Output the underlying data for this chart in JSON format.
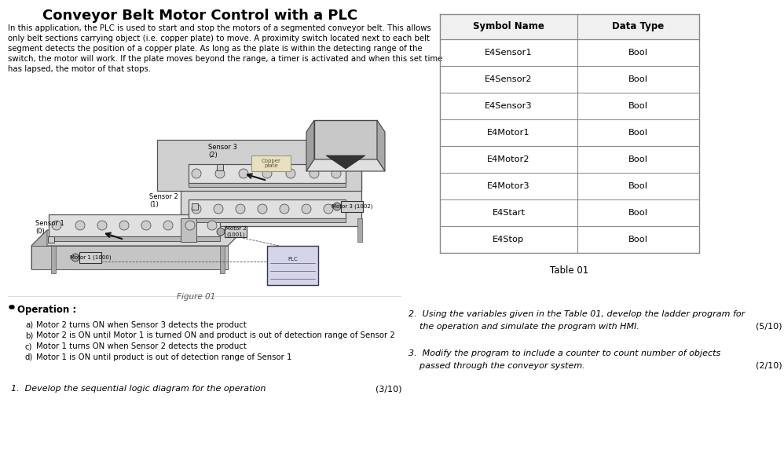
{
  "title": "Conveyor Belt Motor Control with a PLC",
  "intro_text_lines": [
    "In this application, the PLC is used to start and stop the motors of a segmented conveyor belt. This allows",
    "only belt sections carrying object (i.e. copper plate) to move. A proximity switch located next to each belt",
    "segment detects the position of a copper plate. As long as the plate is within the detecting range of the",
    "switch, the motor will work. If the plate moves beyond the range, a timer is activated and when this set time",
    "has lapsed, the motor of that stops."
  ],
  "table_headers": [
    "Symbol Name",
    "Data Type"
  ],
  "table_rows": [
    [
      "E4Sensor1",
      "Bool"
    ],
    [
      "E4Sensor2",
      "Bool"
    ],
    [
      "E4Sensor3",
      "Bool"
    ],
    [
      "E4Motor1",
      "Bool"
    ],
    [
      "E4Motor2",
      "Bool"
    ],
    [
      "E4Motor3",
      "Bool"
    ],
    [
      "E4Start",
      "Bool"
    ],
    [
      "E4Stop",
      "Bool"
    ]
  ],
  "table_caption": "Table 01",
  "figure_caption": "Figure 01",
  "operation_header": "Operation :",
  "operation_items": [
    "Motor 2 turns ON when Sensor 3 detects the product",
    "Motor 2 is ON until Motor 1 is turned ON and product is out of detection range of Sensor 2",
    "Motor 1 turns ON when Sensor 2 detects the product",
    "Motor 1 is ON until product is out of detection range of Sensor 1"
  ],
  "operation_labels": [
    "a)",
    "b)",
    "c)",
    "d)"
  ],
  "question1": "1.  Develop the sequential logic diagram for the operation",
  "question1_marks": "(3/10)",
  "question2_line1": "2.  Using the variables given in the Table 01, develop the ladder program for",
  "question2_line2": "    the operation and simulate the program with HMI.",
  "question2_marks": "(5/10)",
  "question3_line1": "3.  Modify the program to include a counter to count number of objects",
  "question3_line2": "    passed through the conveyor system.",
  "question3_marks": "(2/10)",
  "bg_color": "#ffffff",
  "text_color": "#000000",
  "table_border_color": "#888888",
  "diagram_line_color": "#555555"
}
